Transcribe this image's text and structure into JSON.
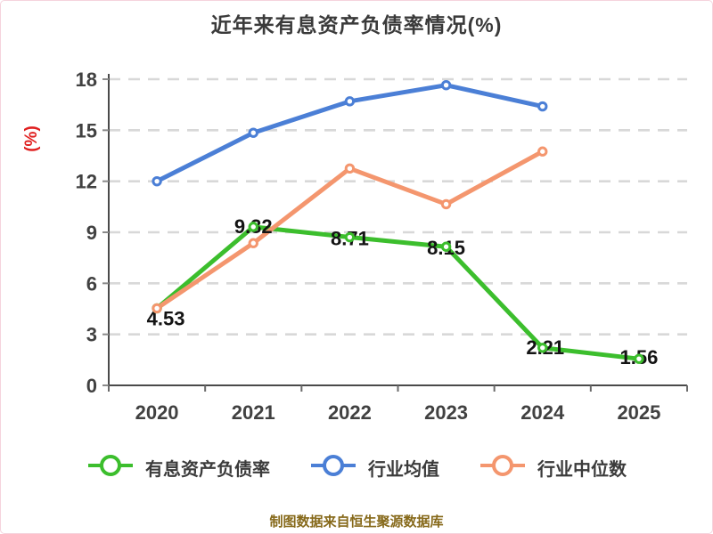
{
  "title": "近年来有息资产负债率情况(%)",
  "footer": "制图数据来自恒生聚源数据库",
  "colors": {
    "background": "#ffffff",
    "border": "#f5d3dd",
    "title_text": "#3a3a3a",
    "axis": "#4a4a4a",
    "tick_text": "#414141",
    "grid": "#d8d8d8",
    "data_label": "#141414",
    "ylabel_red": "#e01f1f",
    "footer_text": "#86691a",
    "legend_text": "#3b3b3b",
    "series_green": "#3cbe2d",
    "series_blue": "#4b7fd6",
    "series_orange": "#f4966e"
  },
  "chart_data": {
    "type": "line",
    "title": "近年来有息资产负债率情况(%)",
    "xlabel": "",
    "ylabel": "(%)",
    "categories": [
      "2020",
      "2021",
      "2022",
      "2023",
      "2024",
      "2025"
    ],
    "ylim": [
      0,
      18
    ],
    "yticks": [
      0,
      3,
      6,
      9,
      12,
      15,
      18
    ],
    "grid": "horizontal-dashed",
    "legend_position": "bottom",
    "series": [
      {
        "name": "有息资产负债率",
        "color": "#3cbe2d",
        "values": [
          4.53,
          9.32,
          8.71,
          8.15,
          2.21,
          1.56
        ],
        "point_labels": [
          "4.53",
          "9.32",
          "8.71",
          "8.15",
          "2.21",
          "1.56"
        ]
      },
      {
        "name": "行业均值",
        "color": "#4b7fd6",
        "values": [
          12.0,
          14.85,
          16.7,
          17.65,
          16.4,
          null
        ],
        "point_labels": []
      },
      {
        "name": "行业中位数",
        "color": "#f4966e",
        "values": [
          4.53,
          8.36,
          12.75,
          10.65,
          13.75,
          null
        ],
        "point_labels": []
      }
    ]
  }
}
